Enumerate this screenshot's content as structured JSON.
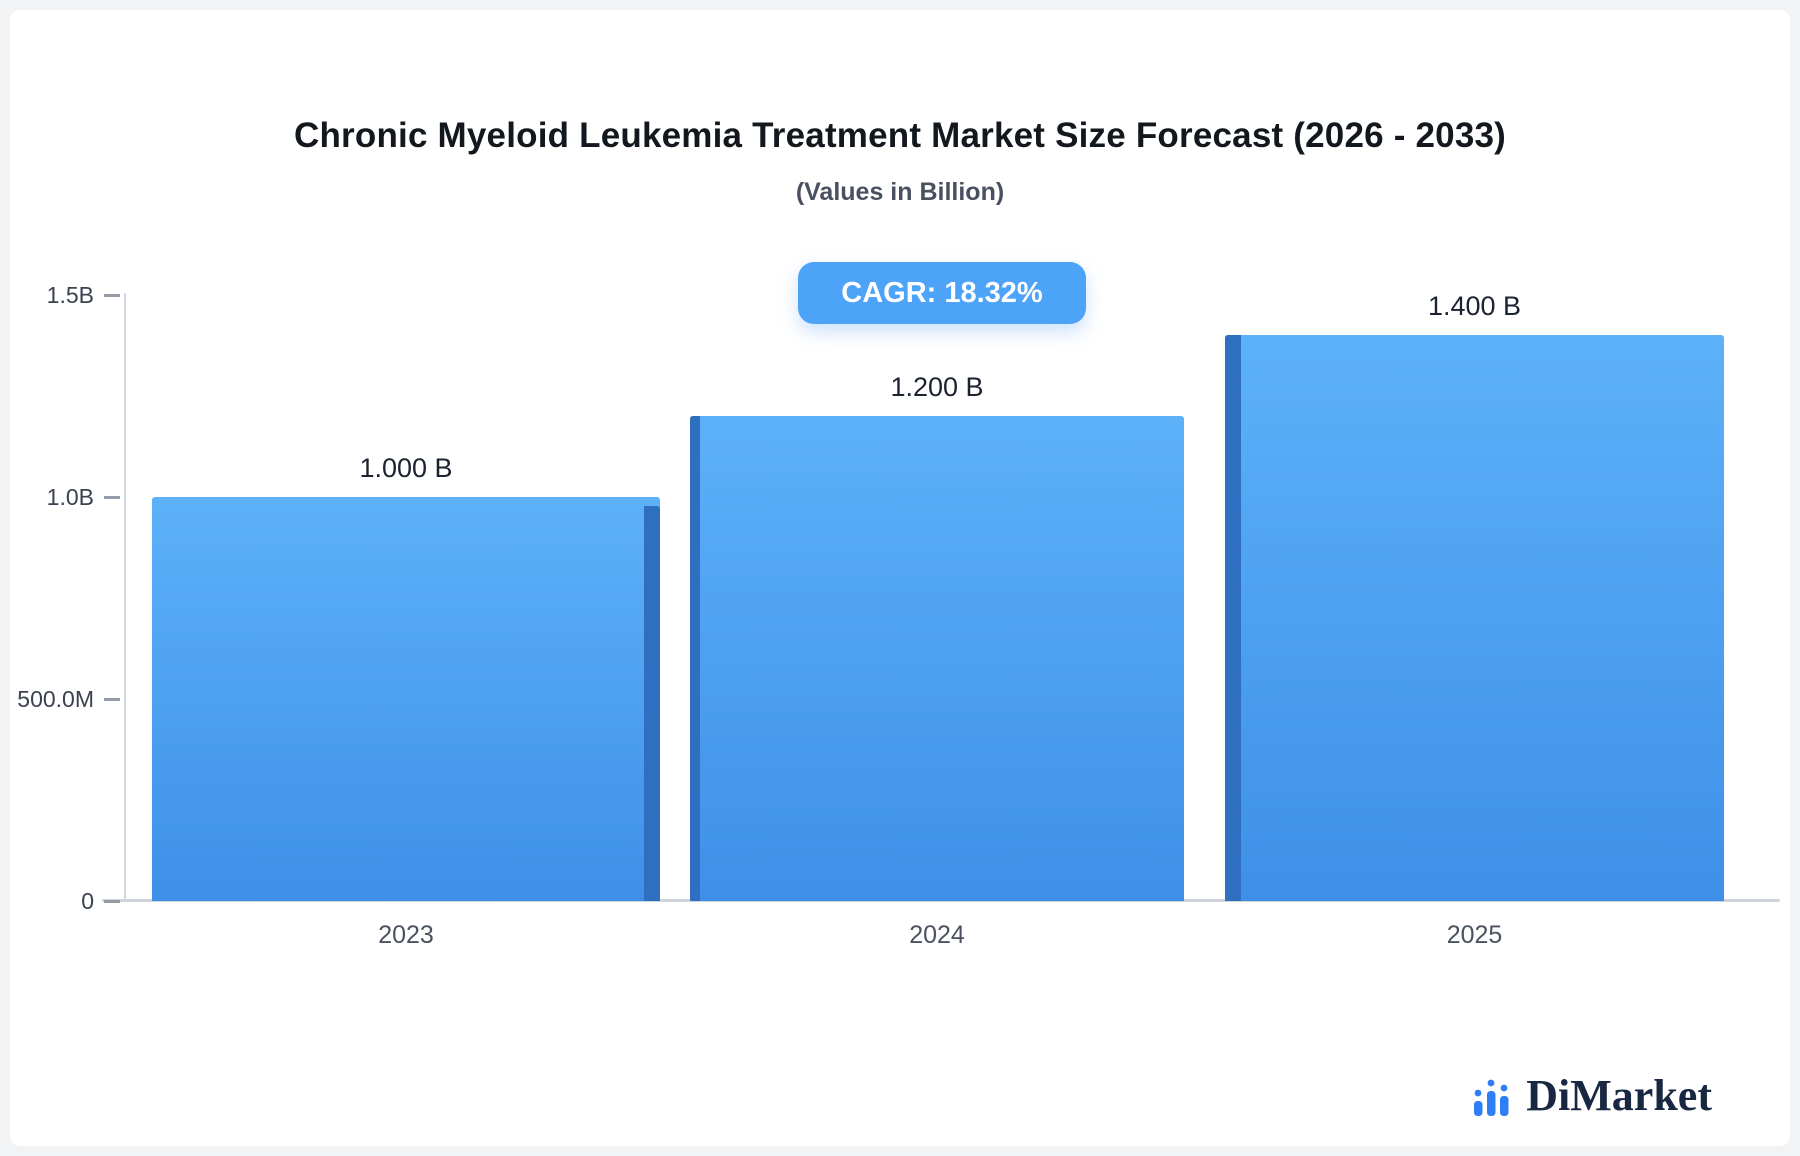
{
  "chart_data": {
    "type": "bar",
    "title": "Chronic Myeloid Leukemia Treatment Market Size Forecast (2026 - 2033)",
    "subtitle": "(Values in Billion)",
    "cagr_label": "CAGR: 18.32%",
    "categories": [
      "2023",
      "2024",
      "2025"
    ],
    "values": [
      1.0,
      1.2,
      1.4
    ],
    "value_labels": [
      "1.000 B",
      "1.200 B",
      "1.400 B"
    ],
    "ylim": [
      0,
      1.5
    ],
    "yticks": [
      {
        "value": 0,
        "label": "0"
      },
      {
        "value": 0.5,
        "label": "500.0M"
      },
      {
        "value": 1.0,
        "label": "1.0B"
      },
      {
        "value": 1.5,
        "label": "1.5B"
      }
    ],
    "grid": false,
    "legend": "none",
    "colors": {
      "bar_top": "#5db1f8",
      "bar_bottom": "#3f8fe9",
      "bar_side": "#2e6fc0",
      "badge": "#4da3f7"
    }
  },
  "logo": {
    "text": "DiMarket",
    "text_color": "#182742",
    "icon_color": "#2f7ef5"
  }
}
